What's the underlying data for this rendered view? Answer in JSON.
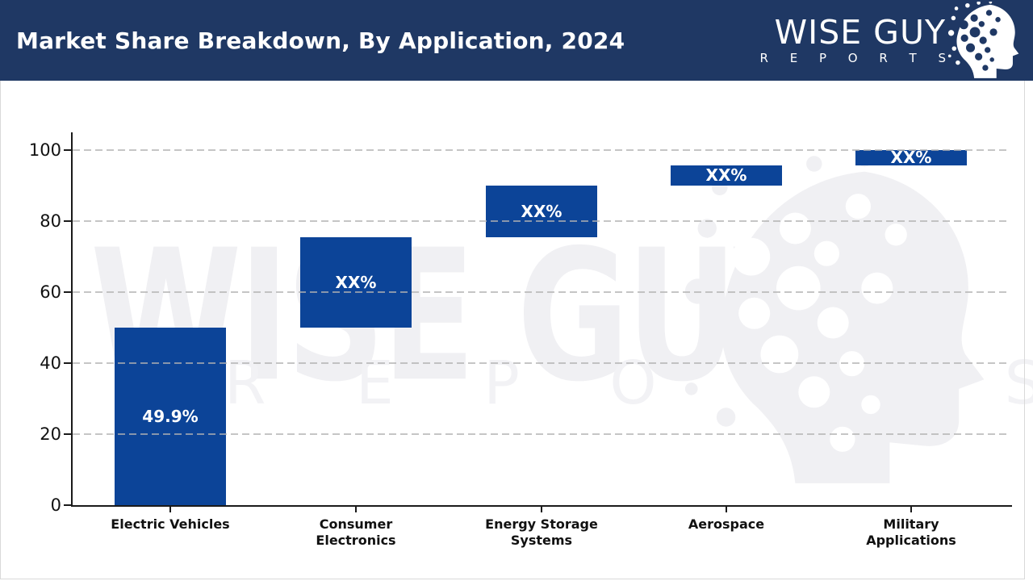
{
  "header": {
    "title": "Market Share Breakdown, By Application, 2024",
    "logo": {
      "primary": "WISE GUY",
      "secondary": "R E P O R T S"
    }
  },
  "watermark": {
    "primary": "WISE GUY",
    "secondary": "R E P O R T S"
  },
  "colors": {
    "header_bg": "#1f3864",
    "bar": "#0c4498",
    "grid": "#c9c9c9",
    "axis": "#1a1a1a",
    "bar_label": "#ffffff",
    "watermark": "#f0f0f3"
  },
  "chart_data": {
    "type": "bar",
    "subtype": "waterfall",
    "title": "Market Share Breakdown, By Application, 2024",
    "unit": "%",
    "categories": [
      "Electric Vehicles",
      "Consumer Electronics",
      "Energy Storage Systems",
      "Aerospace",
      "Military Applications"
    ],
    "category_label_lines": [
      [
        "Electric Vehicles"
      ],
      [
        "Consumer",
        "Electronics"
      ],
      [
        "Energy Storage",
        "Systems"
      ],
      [
        "Aerospace"
      ],
      [
        "Military",
        "Applications"
      ]
    ],
    "segments": [
      {
        "category": "Electric Vehicles",
        "start": 0,
        "end": 49.9,
        "bar_label": "49.9%"
      },
      {
        "category": "Consumer Electronics",
        "start": 49.9,
        "end": 75.4,
        "bar_label": "XX%"
      },
      {
        "category": "Energy Storage Systems",
        "start": 75.4,
        "end": 90.0,
        "bar_label": "XX%"
      },
      {
        "category": "Aerospace",
        "start": 90.0,
        "end": 95.7,
        "bar_label": "XX%"
      },
      {
        "category": "Military Applications",
        "start": 95.7,
        "end": 100.0,
        "bar_label": "XX%"
      }
    ],
    "yticks": [
      0,
      20,
      40,
      60,
      80,
      100
    ],
    "ylim": [
      0,
      105
    ],
    "xlabel": "",
    "ylabel": "",
    "grid": {
      "horizontal": true,
      "style": "dashed",
      "drawn_over_bars": true
    },
    "legend": null,
    "bar_color": "#0c4498",
    "bar_label_color": "#ffffff"
  }
}
